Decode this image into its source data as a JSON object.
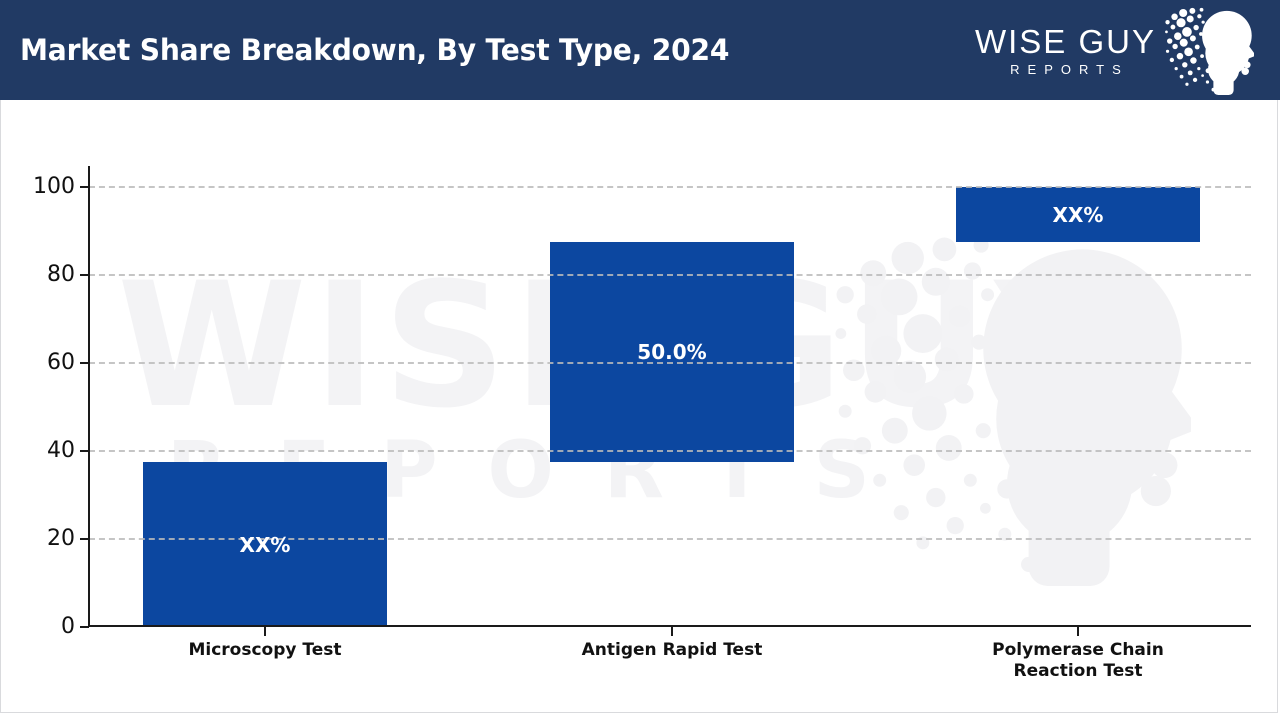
{
  "header": {
    "title": "Market Share Breakdown, By Test Type, 2024",
    "logo": {
      "line1": "WISE GUY",
      "line2": "REPORTS"
    }
  },
  "watermark": {
    "text1": "WISE GUY",
    "text2": "REPORTS"
  },
  "chart_data": {
    "type": "bar",
    "subtype": "floating-segment-waterfall",
    "title": "Market Share Breakdown, By Test Type, 2024",
    "categories": [
      "Microscopy Test",
      "Antigen Rapid Test",
      "Polymerase Chain Reaction Test"
    ],
    "bars": [
      {
        "category": "Microscopy Test",
        "start": 0,
        "end": 37.5,
        "value_label": "XX%"
      },
      {
        "category": "Antigen Rapid Test",
        "start": 37.5,
        "end": 87.5,
        "value_label": "50.0%"
      },
      {
        "category": "Polymerase Chain Reaction Test",
        "start": 87.5,
        "end": 100,
        "value_label": "XX%"
      }
    ],
    "ylim": [
      0,
      100
    ],
    "yticks": [
      0,
      20,
      40,
      60,
      80,
      100
    ],
    "xlabel": "",
    "ylabel": "",
    "grid": "horizontal-dashed",
    "legend": "none",
    "bar_color": "#0c47a0",
    "label_color": "#ffffff"
  },
  "colors": {
    "header_bg": "#213a64",
    "bar": "#0c47a0",
    "gridline": "#bbbbbb",
    "axis": "#1a1a1a",
    "watermark": "#f3f3f5",
    "border": "#d9dadd"
  }
}
